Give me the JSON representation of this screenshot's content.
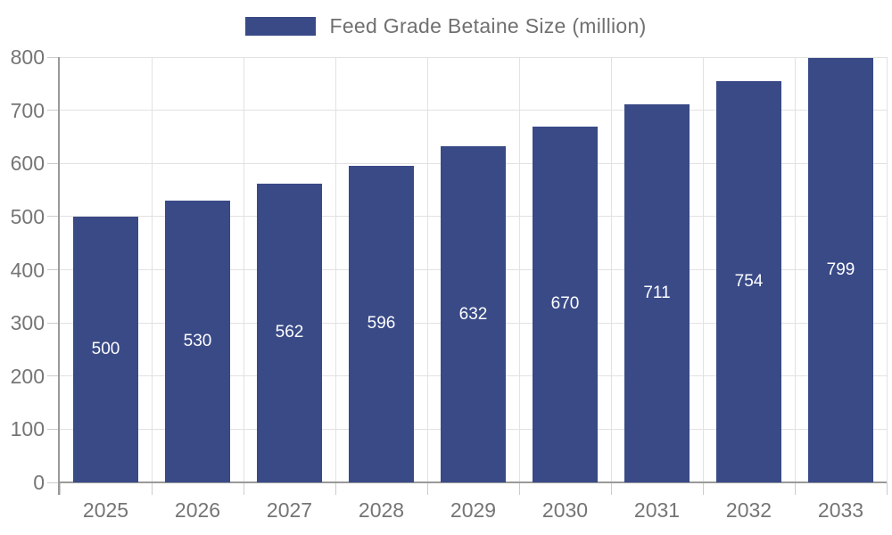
{
  "chart_data": {
    "type": "bar",
    "title": "Feed Grade Betaine Size (million)",
    "categories": [
      "2025",
      "2026",
      "2027",
      "2028",
      "2029",
      "2030",
      "2031",
      "2032",
      "2033"
    ],
    "values": [
      500,
      530,
      562,
      596,
      632,
      670,
      711,
      754,
      799
    ],
    "xlabel": "",
    "ylabel": "",
    "ylim": [
      0,
      800
    ],
    "y_ticks": [
      0,
      100,
      200,
      300,
      400,
      500,
      600,
      700,
      800
    ],
    "legend": {
      "position": "top",
      "entries": [
        {
          "label": "Feed Grade Betaine Size (million)",
          "color": "#394a87"
        }
      ]
    },
    "grid": true,
    "bar_labels_inside": true,
    "colors": {
      "bar": "#394a87",
      "bar_label": "#ffffff",
      "axis_text": "#757575",
      "legend_text": "#707070",
      "axis_line": "#999999",
      "grid_line": "#e2e2e2",
      "tick_line": "#cccccc",
      "background": "#ffffff"
    }
  }
}
